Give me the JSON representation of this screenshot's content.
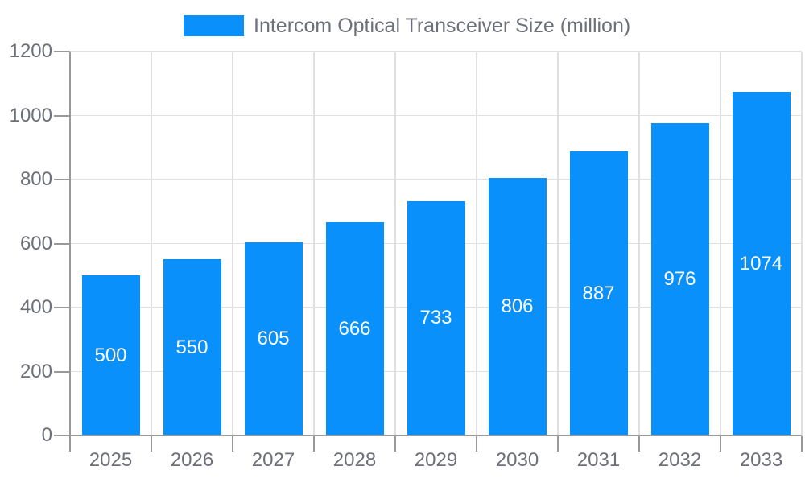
{
  "chart_data": {
    "type": "bar",
    "title": "",
    "legend": "Intercom Optical Transceiver Size (million)",
    "legend_position": "top-center",
    "categories": [
      "2025",
      "2026",
      "2027",
      "2028",
      "2029",
      "2030",
      "2031",
      "2032",
      "2033"
    ],
    "values": [
      500,
      550,
      605,
      666,
      733,
      806,
      887,
      976,
      1074
    ],
    "xlabel": "",
    "ylabel": "",
    "ylim": [
      0,
      1200
    ],
    "yticks": [
      0,
      200,
      400,
      600,
      800,
      1000,
      1200
    ],
    "grid": true,
    "bar_color": "#0a90fa",
    "bar_label_color": "#ffffff",
    "axis_label_color": "#6e7079",
    "grid_color": "#e0e0e0",
    "axis_color": "#999999",
    "background_color": "#ffffff"
  }
}
